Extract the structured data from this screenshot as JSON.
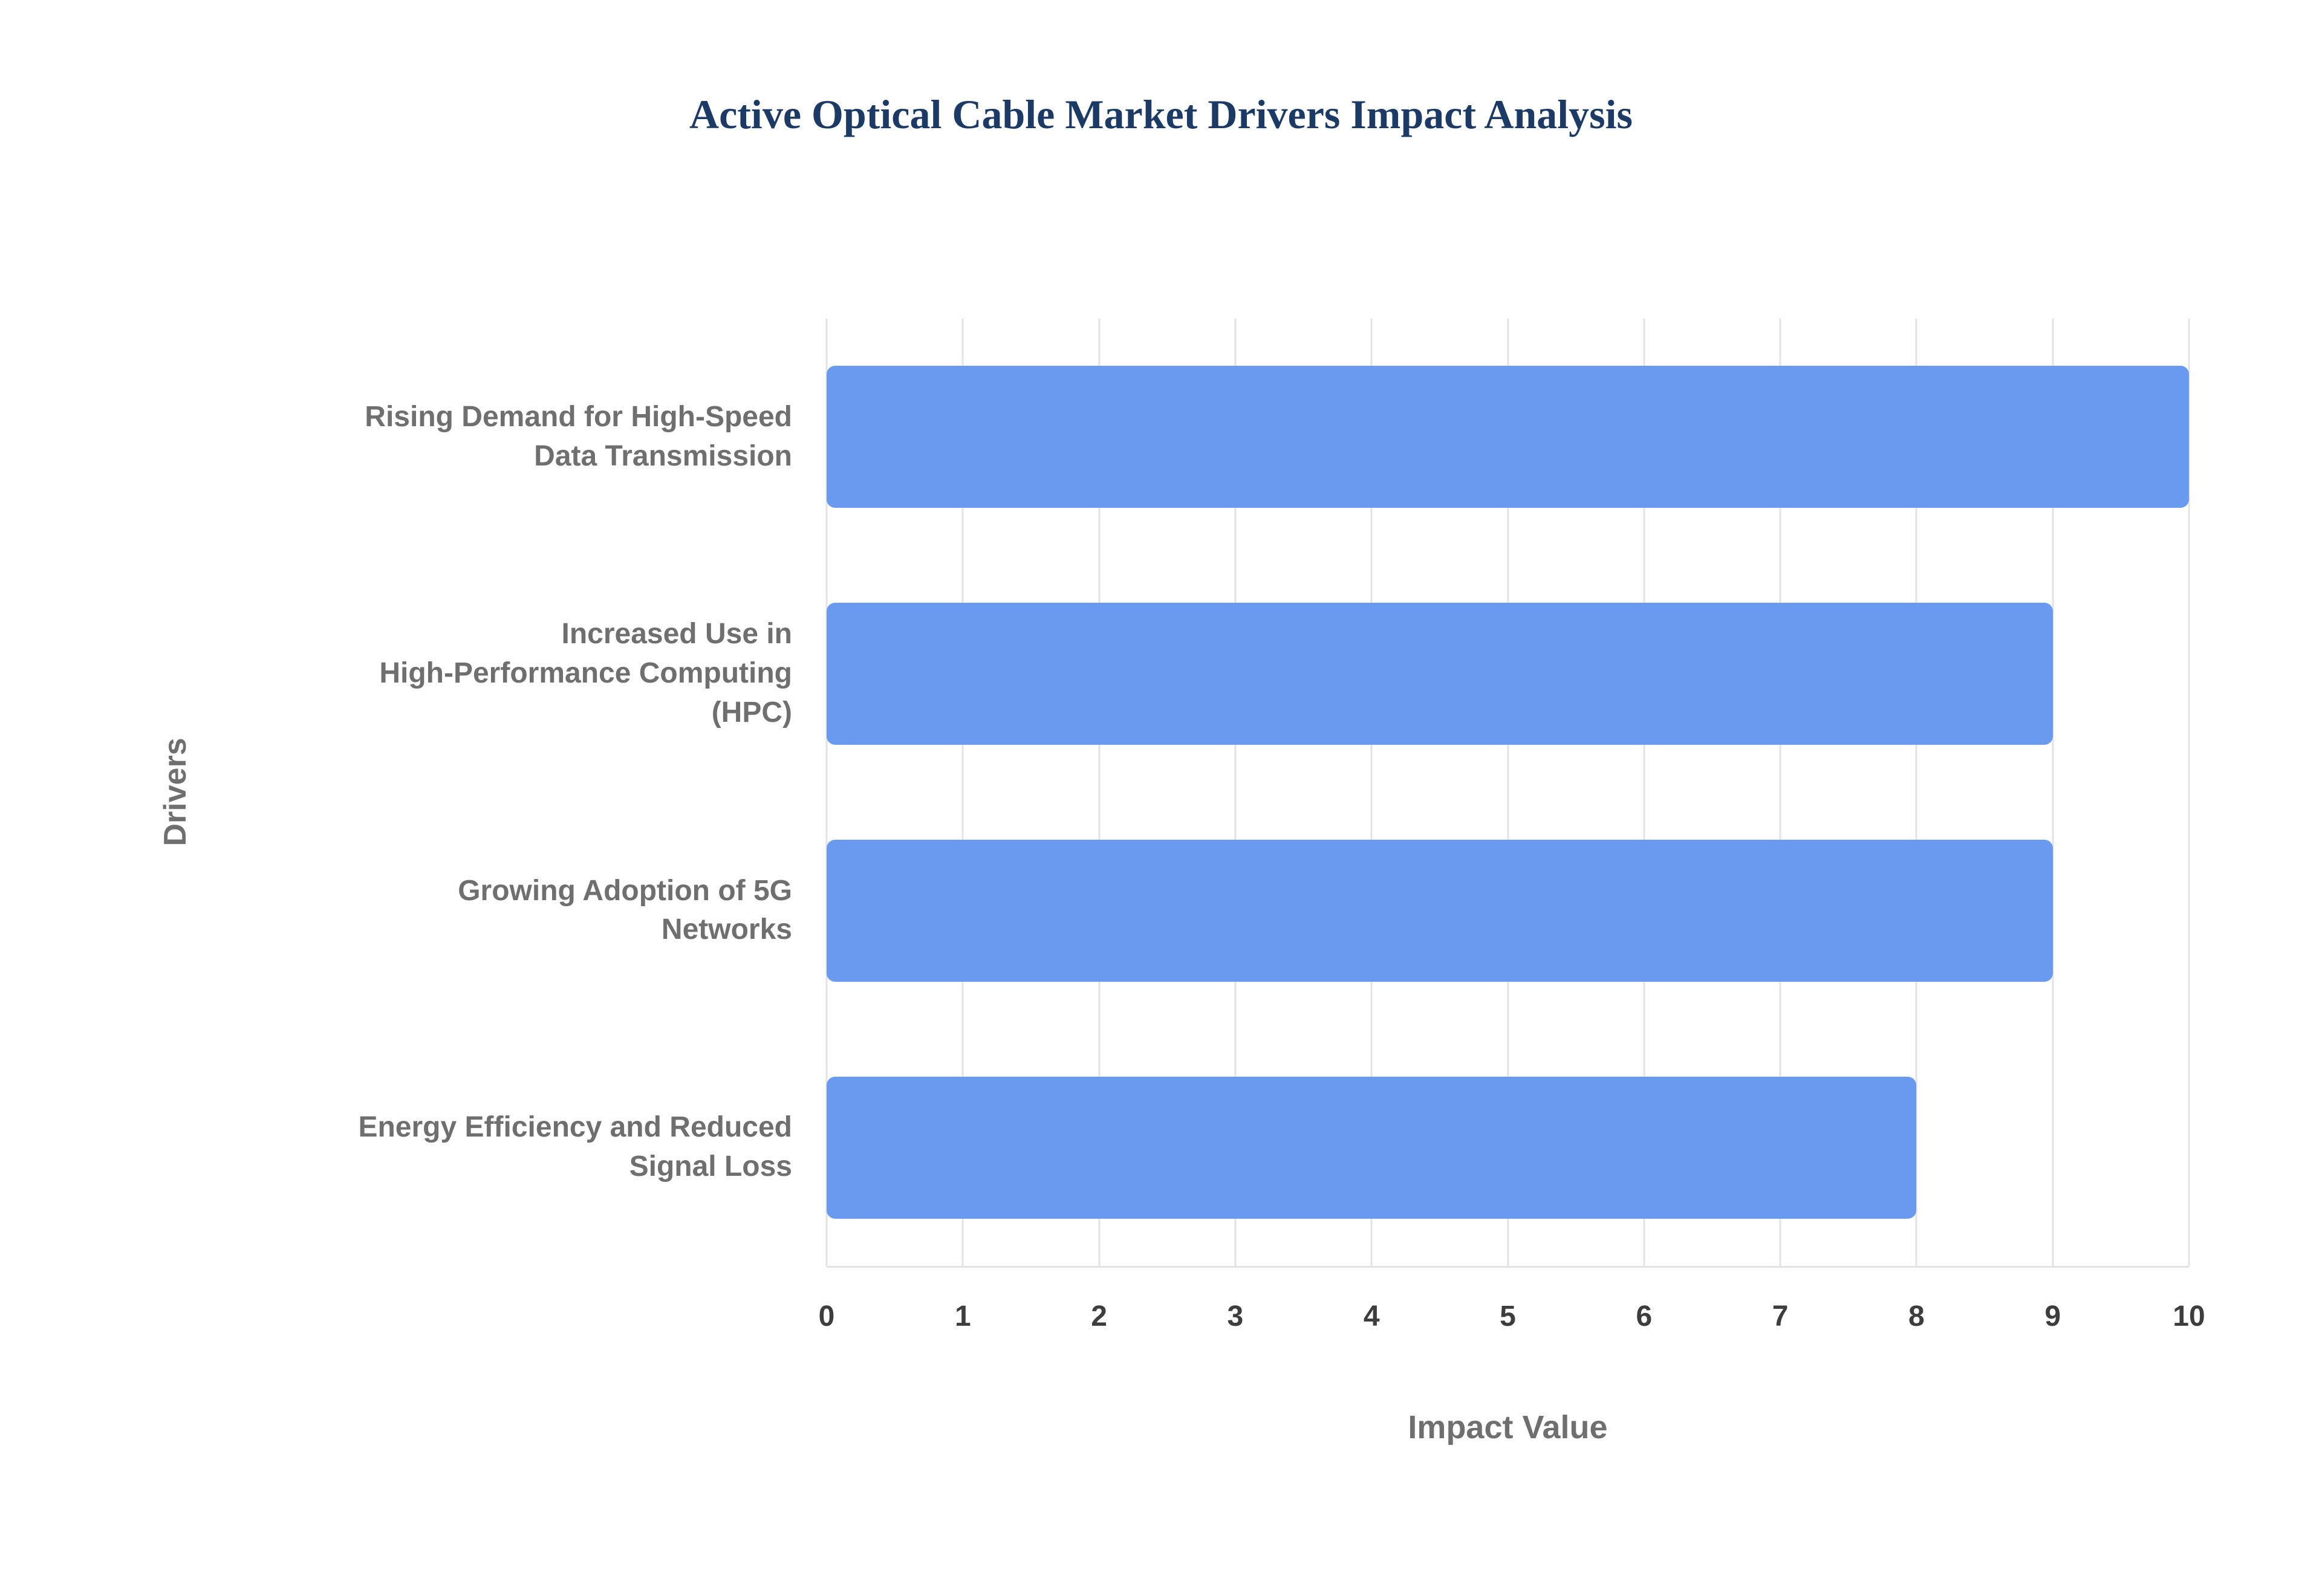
{
  "chart_data": {
    "type": "bar",
    "orientation": "horizontal",
    "title": "Active Optical Cable Market Drivers Impact Analysis",
    "categories": [
      "Rising Demand for High-Speed\nData Transmission",
      "Increased Use in\nHigh-Performance Computing\n(HPC)",
      "Growing Adoption of 5G\nNetworks",
      "Energy Efficiency and Reduced\nSignal Loss"
    ],
    "values": [
      10,
      9,
      9,
      8
    ],
    "xlabel": "Impact Value",
    "ylabel": "Drivers",
    "xlim": [
      0,
      10
    ],
    "xticks": [
      0,
      1,
      2,
      3,
      4,
      5,
      6,
      7,
      8,
      9,
      10
    ],
    "grid": true,
    "legend": "none",
    "colors": {
      "bar": "#6a99f0",
      "title": "#1b3a66",
      "axis_label": "#6f6f6f",
      "tick_label": "#3d3d3d",
      "gridline": "#e3e3e3",
      "background": "#ffffff"
    }
  }
}
